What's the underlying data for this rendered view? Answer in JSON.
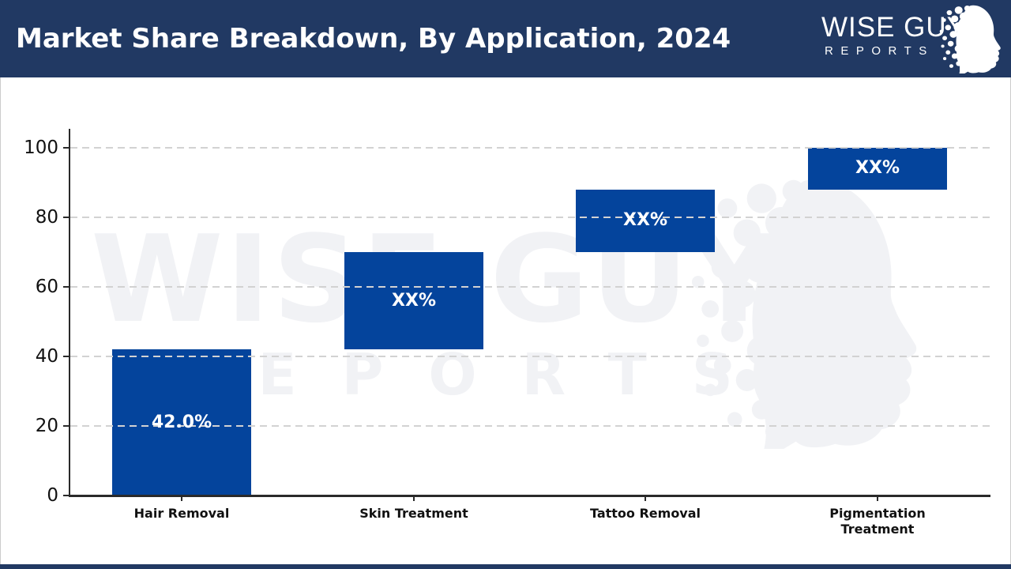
{
  "colors": {
    "header_navy": "#213963",
    "bar_blue": "#04449c",
    "watermark_gray": "#f1f2f5",
    "grid_gray": "#d2d2d2",
    "axis_black": "#2a2a2a"
  },
  "header": {
    "title": "Market Share Breakdown, By Application, 2024",
    "logo_line1": "WISE GUY",
    "logo_line2": "REPORTS"
  },
  "watermark": {
    "line1": "WISE GUY",
    "line2": "REPORTS"
  },
  "chart_data": {
    "type": "bar",
    "subtype": "waterfall (stacked market-share breakdown, floating segments)",
    "title": "Market Share Breakdown, By Application, 2024",
    "categories": [
      "Hair Removal",
      "Skin Treatment",
      "Tattoo Removal",
      "Pigmentation Treatment"
    ],
    "segments": [
      {
        "from": 0,
        "to": 42
      },
      {
        "from": 42,
        "to": 70
      },
      {
        "from": 70,
        "to": 88
      },
      {
        "from": 88,
        "to": 100
      }
    ],
    "values": [
      42,
      28,
      18,
      12
    ],
    "bar_labels": [
      "42.0%",
      "XX%",
      "XX%",
      "XX%"
    ],
    "y_ticks": [
      0,
      20,
      40,
      60,
      80,
      100
    ],
    "ylim": [
      0,
      100
    ],
    "xlabel": "",
    "ylabel": "",
    "legend": "none",
    "grid": "horizontal-dashed",
    "bar_color": "#04449c",
    "bar_label_color": "#ffffff"
  }
}
